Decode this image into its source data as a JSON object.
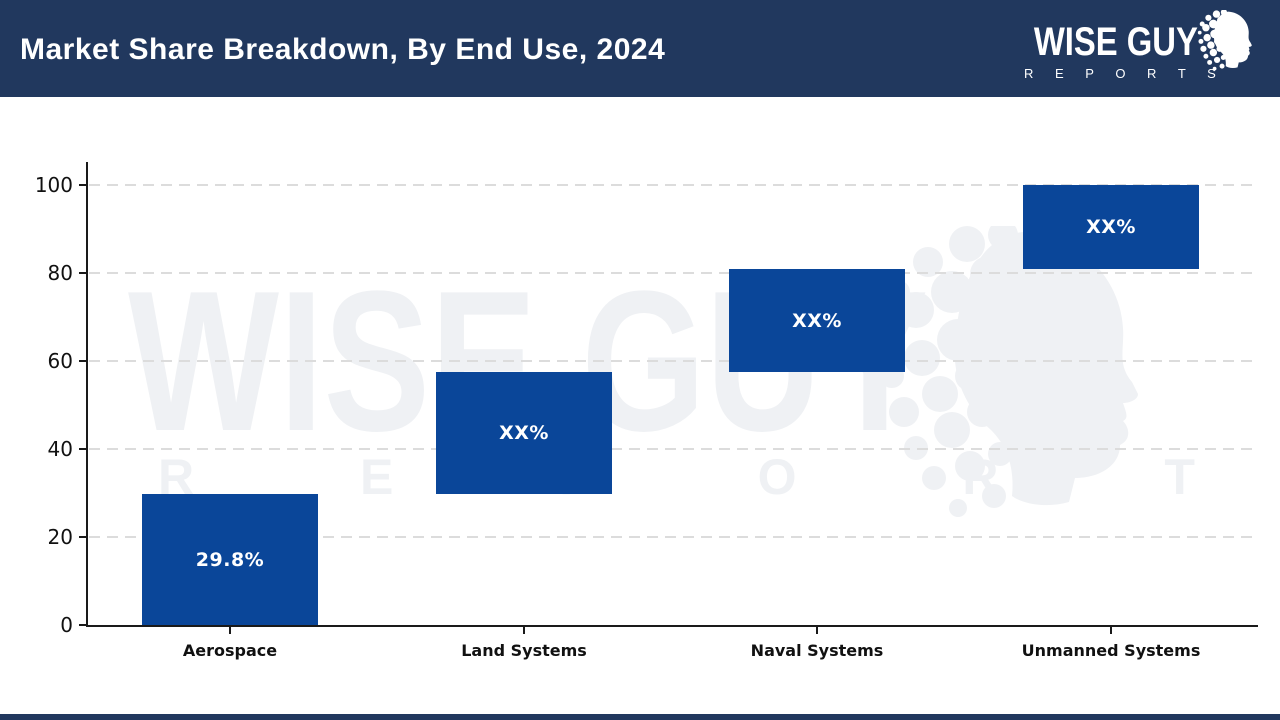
{
  "header": {
    "title": "Market Share Breakdown, By End Use, 2024",
    "logo": {
      "line1": "WISE GUY",
      "line2": "R E P O R T S"
    }
  },
  "watermark": {
    "line1": "WISE GUY",
    "line2": "R E P O R T S"
  },
  "chart_data": {
    "type": "bar",
    "variant": "waterfall",
    "title": "Market Share Breakdown, By End Use, 2024",
    "categories": [
      "Aerospace",
      "Land Systems",
      "Naval Systems",
      "Unmanned Systems"
    ],
    "segments": [
      {
        "category": "Aerospace",
        "from": 0,
        "to": 29.8,
        "label": "29.8%"
      },
      {
        "category": "Land Systems",
        "from": 29.8,
        "to": 57.5,
        "label": "XX%"
      },
      {
        "category": "Naval Systems",
        "from": 57.5,
        "to": 81,
        "label": "XX%"
      },
      {
        "category": "Unmanned Systems",
        "from": 81,
        "to": 100,
        "label": "XX%"
      }
    ],
    "xlabel": "",
    "ylabel": "",
    "ylim": [
      0,
      100
    ],
    "yticks": [
      0,
      20,
      40,
      60,
      80,
      100
    ],
    "grid": "horizontal-dashed",
    "legend": "none",
    "bar_color": "#0a4699"
  },
  "colors": {
    "header_bg": "#21385e",
    "footer_bg": "#21385e",
    "bar": "#0a4699",
    "grid": "#dcdcdc",
    "axis": "#1a1a1a",
    "watermark": "#eff1f4",
    "bar_label_text": "#ffffff"
  }
}
